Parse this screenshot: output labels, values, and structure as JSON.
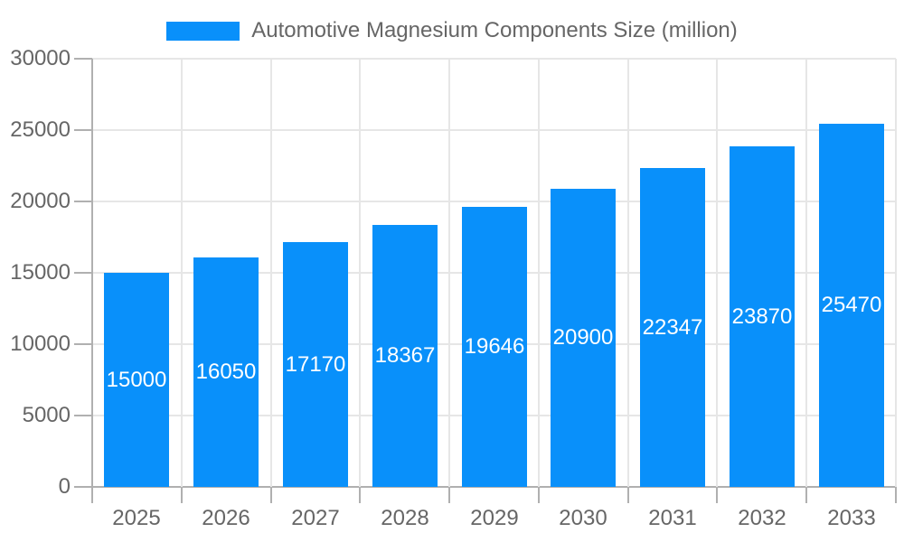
{
  "chart_data": {
    "type": "bar",
    "title": "Automotive Magnesium Components Size (million)",
    "categories": [
      "2025",
      "2026",
      "2027",
      "2028",
      "2029",
      "2030",
      "2031",
      "2032",
      "2033"
    ],
    "values": [
      15000,
      16050,
      17170,
      18367,
      19646,
      20900,
      22347,
      23870,
      25470
    ],
    "value_labels": [
      "15000",
      "16050",
      "17170",
      "18367",
      "19646",
      "20900",
      "22347",
      "23870",
      "25470"
    ],
    "xlabel": "",
    "ylabel": "",
    "ylim": [
      0,
      30000
    ],
    "yticks": [
      0,
      5000,
      10000,
      15000,
      20000,
      25000,
      30000
    ],
    "ytick_labels": [
      "0",
      "5000",
      "10000",
      "15000",
      "20000",
      "25000",
      "30000"
    ],
    "grid": true,
    "legend_position": "top",
    "colors": {
      "bar": "#0990fa",
      "bar_label": "#ffffff",
      "axis_text": "#666666",
      "gridline": "#e6e6e6",
      "axis_line": "#b0b0b0",
      "legend_text": "#666666"
    }
  }
}
